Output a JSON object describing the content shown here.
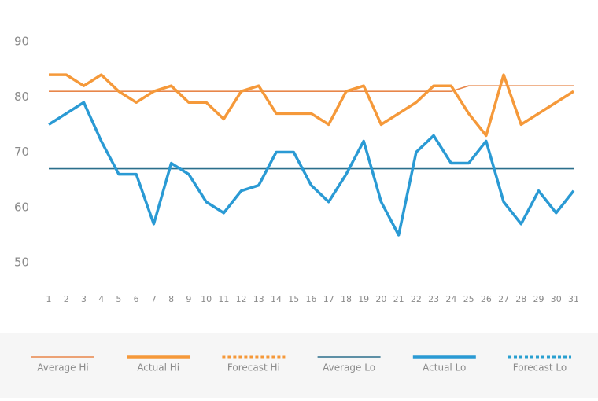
{
  "chart_data": {
    "type": "line",
    "x": [
      1,
      2,
      3,
      4,
      5,
      6,
      7,
      8,
      9,
      10,
      11,
      12,
      13,
      14,
      15,
      16,
      17,
      18,
      19,
      20,
      21,
      22,
      23,
      24,
      25,
      26,
      27,
      28,
      29,
      30,
      31
    ],
    "xlim": [
      1,
      31
    ],
    "xticks": [
      1,
      2,
      3,
      4,
      5,
      6,
      7,
      8,
      9,
      10,
      11,
      12,
      13,
      14,
      15,
      16,
      17,
      18,
      19,
      20,
      21,
      22,
      23,
      24,
      25,
      26,
      27,
      28,
      29,
      30,
      31
    ],
    "ylim": [
      50,
      90
    ],
    "yticks": [
      50,
      60,
      70,
      80,
      90
    ],
    "series": [
      {
        "name": "Average Hi",
        "color": "#e8864a",
        "line": "thin",
        "values": [
          81,
          81,
          81,
          81,
          81,
          81,
          81,
          81,
          81,
          81,
          81,
          81,
          81,
          81,
          81,
          81,
          81,
          81,
          81,
          81,
          81,
          81,
          81,
          81,
          82,
          82,
          82,
          82,
          82,
          82,
          82
        ]
      },
      {
        "name": "Actual Hi",
        "color": "#f5993a",
        "line": "thick",
        "values": [
          84,
          84,
          82,
          84,
          81,
          79,
          81,
          82,
          79,
          79,
          76,
          81,
          82,
          77,
          77,
          77,
          75,
          81,
          82,
          75,
          77,
          79,
          82,
          82,
          77,
          73,
          84,
          75,
          77,
          79,
          81
        ]
      },
      {
        "name": "Forecast Hi",
        "color": "#f5993a",
        "line": "dotted",
        "values": [
          null,
          null,
          null,
          null,
          null,
          null,
          null,
          null,
          null,
          null,
          null,
          null,
          null,
          null,
          null,
          null,
          null,
          null,
          null,
          null,
          null,
          null,
          null,
          null,
          null,
          null,
          null,
          null,
          null,
          null,
          null
        ]
      },
      {
        "name": "Average Lo",
        "color": "#2b6f8c",
        "line": "thin",
        "values": [
          67,
          67,
          67,
          67,
          67,
          67,
          67,
          67,
          67,
          67,
          67,
          67,
          67,
          67,
          67,
          67,
          67,
          67,
          67,
          67,
          67,
          67,
          67,
          67,
          67,
          67,
          67,
          67,
          67,
          67,
          67
        ]
      },
      {
        "name": "Actual Lo",
        "color": "#2a9ad4",
        "line": "thick",
        "values": [
          75,
          77,
          79,
          72,
          66,
          66,
          57,
          68,
          66,
          61,
          59,
          63,
          64,
          70,
          70,
          64,
          61,
          66,
          72,
          61,
          55,
          70,
          73,
          68,
          68,
          72,
          61,
          57,
          63,
          59,
          63
        ]
      },
      {
        "name": "Forecast Lo",
        "color": "#2aa0d0",
        "line": "dotted",
        "values": [
          null,
          null,
          null,
          null,
          null,
          null,
          null,
          null,
          null,
          null,
          null,
          null,
          null,
          null,
          null,
          null,
          null,
          null,
          null,
          null,
          null,
          null,
          null,
          null,
          null,
          null,
          null,
          null,
          null,
          null,
          null
        ]
      }
    ]
  }
}
